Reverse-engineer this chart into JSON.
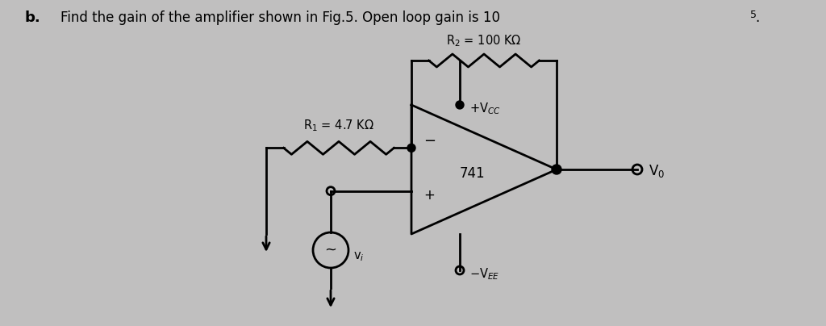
{
  "bg_color": "#c0bfbf",
  "text_color": "#000000",
  "R1_label": "R$_1$ = 4.7 KΩ",
  "R2_label": "R$_2$ = 100 KΩ",
  "opamp_label": "741",
  "Vcc_label": "+V$_{CC}$",
  "Vee_label": "−V$_{EE}$",
  "Vo_label": "V$_0$",
  "Vi_label": "v$_i$",
  "minus_label": "−",
  "plus_label": "+",
  "title_b": "b.",
  "title_text": "Find the gain of the amplifier shown in Fig.5. Open loop gain is 10",
  "title_sup": "5",
  "title_dot": "."
}
